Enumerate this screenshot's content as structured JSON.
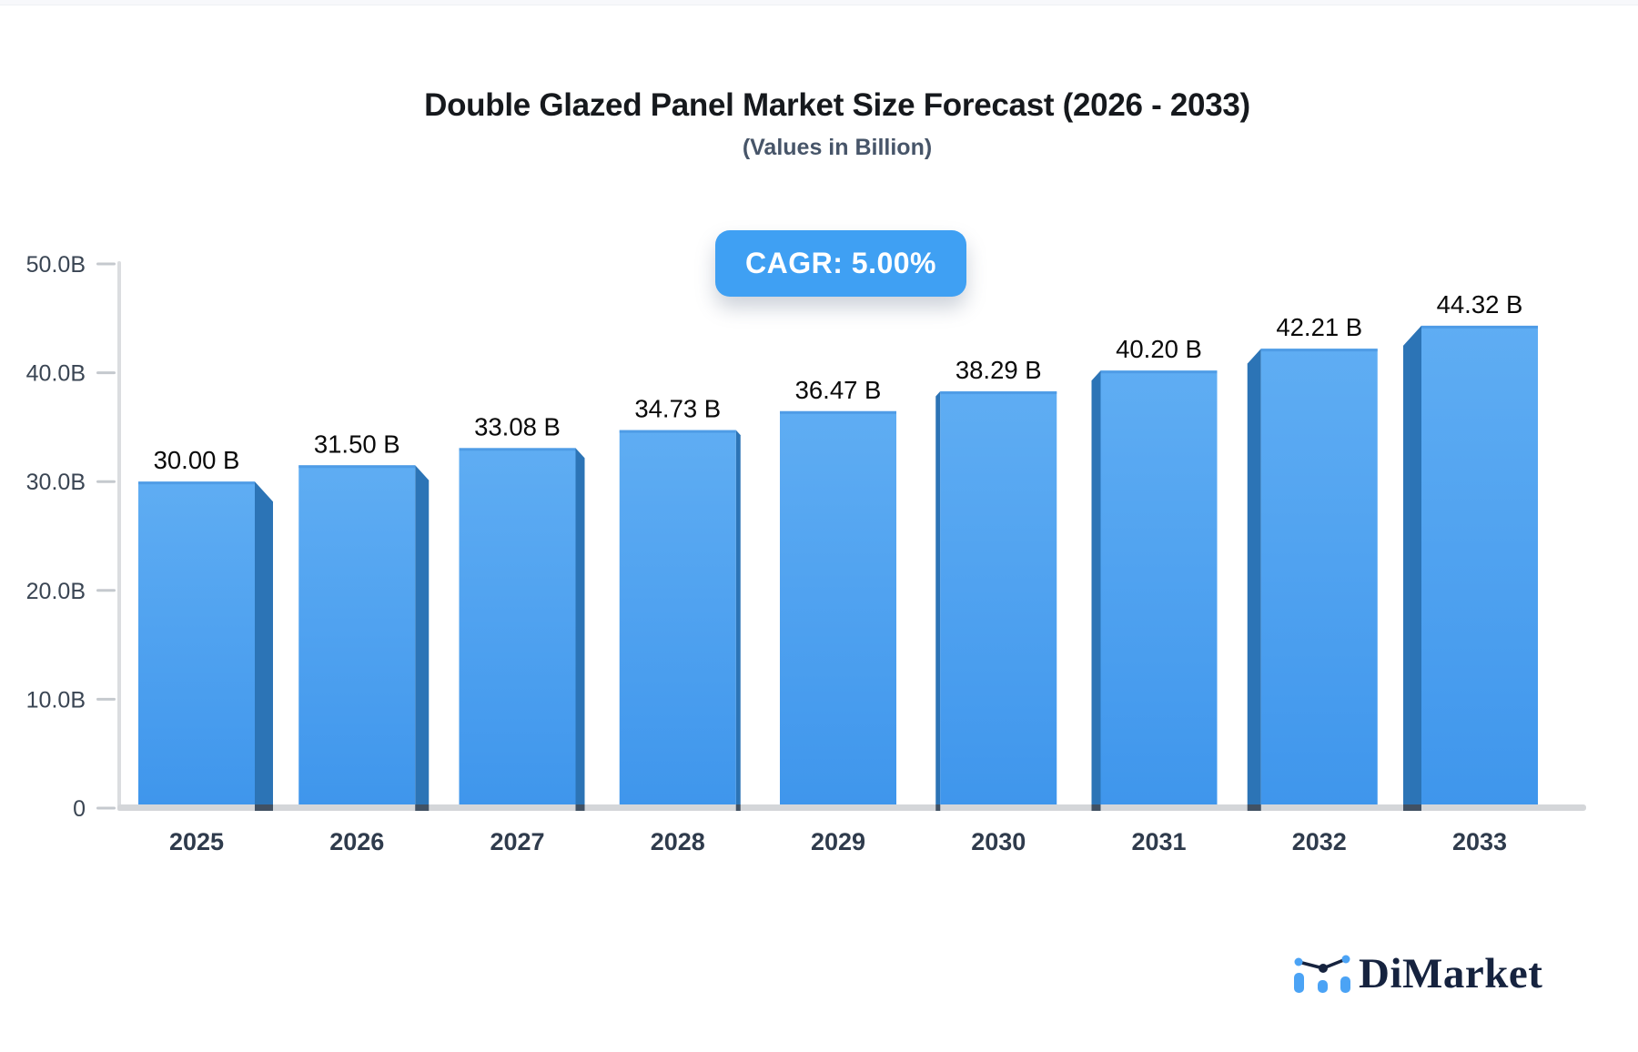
{
  "header": {
    "title": "Double Glazed Panel Market Size Forecast (2026 - 2033)",
    "subtitle": "(Values in Billion)"
  },
  "badge": {
    "label": "CAGR: 5.00%"
  },
  "brand": {
    "name": "DiMarket",
    "icon": "mini-bar-line-chart-icon"
  },
  "colors": {
    "bar_face_top": "#5fadf3",
    "bar_face_bottom": "#3f96ec",
    "bar_top_edge": "#4a97e2",
    "bar_side": "#2c74b6",
    "bar_base_shadow": "#1b2f45",
    "badge_bg": "#3fa0f3",
    "axis_line": "#dbdde0",
    "tick_dash": "#c5c9ce",
    "floor": "#d4d6d9",
    "tick_text": "#3a4553",
    "year_text": "#2f3b4c",
    "value_text": "#0a0a0a",
    "brand_navy": "#16233f",
    "brand_blue": "#4ba3f5"
  },
  "chart_data": {
    "type": "bar",
    "title": "Double Glazed Panel Market Size Forecast (2026 - 2033)",
    "subtitle": "(Values in Billion)",
    "cagr_label": "CAGR: 5.00%",
    "categories": [
      "2025",
      "2026",
      "2027",
      "2028",
      "2029",
      "2030",
      "2031",
      "2032",
      "2033"
    ],
    "values": [
      30.0,
      31.5,
      33.08,
      34.73,
      36.47,
      38.29,
      40.2,
      42.21,
      44.32
    ],
    "value_labels": [
      "30.00 B",
      "31.50 B",
      "33.08 B",
      "34.73 B",
      "36.47 B",
      "38.29 B",
      "40.20 B",
      "42.21 B",
      "44.32 B"
    ],
    "xlabel": "",
    "ylabel": "",
    "ylim": [
      0,
      50
    ],
    "yticks": [
      0,
      10,
      20,
      30,
      40,
      50
    ],
    "ytick_labels": [
      "0",
      "10.0B",
      "20.0B",
      "30.0B",
      "40.0B",
      "50.0B"
    ],
    "grid": false,
    "legend": "none",
    "style": "pseudo-3d-perspective-bars"
  }
}
